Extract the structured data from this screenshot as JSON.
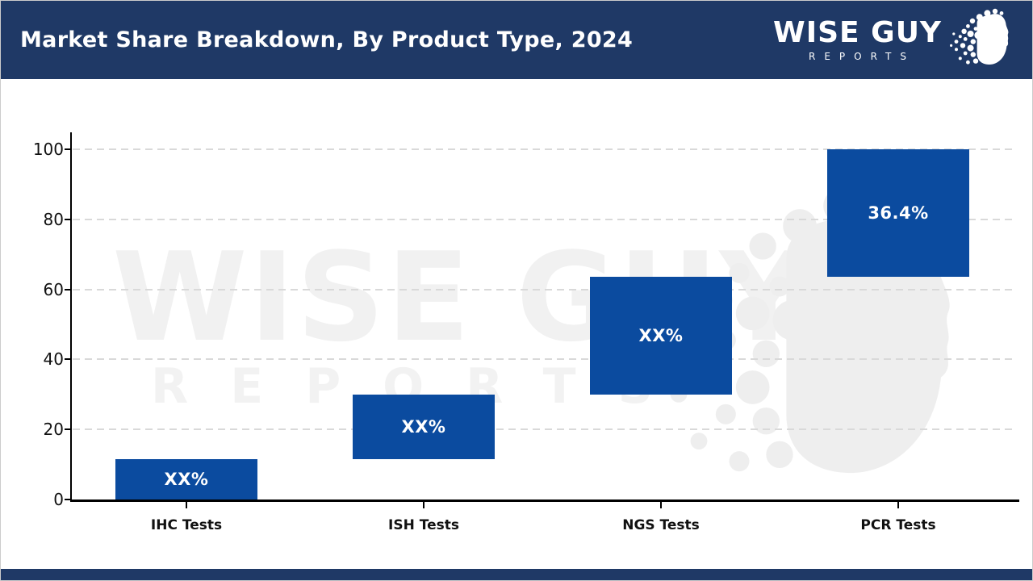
{
  "header": {
    "title": "Market Share Breakdown, By Product Type, 2024",
    "logo": {
      "line1": "WISE GUY",
      "line2": "REPORTS"
    }
  },
  "watermark": {
    "line1": "WISE GUY",
    "line2": "REPORTS"
  },
  "footer": {},
  "chart_data": {
    "type": "bar",
    "subtype": "floating-waterfall",
    "title": "Market Share Breakdown, By Product Type, 2024",
    "categories": [
      "IHC Tests",
      "ISH Tests",
      "NGS Tests",
      "PCR Tests"
    ],
    "bars": [
      {
        "category": "IHC Tests",
        "start": 0,
        "end": 11.5,
        "label": "XX%"
      },
      {
        "category": "ISH Tests",
        "start": 11.5,
        "end": 30,
        "label": "XX%"
      },
      {
        "category": "NGS Tests",
        "start": 30,
        "end": 63.6,
        "label": "XX%"
      },
      {
        "category": "PCR Tests",
        "start": 63.6,
        "end": 100,
        "label": "36.4%",
        "value": 36.4
      }
    ],
    "ylabel": "",
    "xlabel": "",
    "yticks": [
      0,
      20,
      40,
      60,
      80,
      100
    ],
    "ylim": [
      0,
      105
    ],
    "grid": "dashed-horizontal",
    "legend": "none",
    "colors": {
      "bar": "#0b4b9f",
      "bar_label": "#ffffff",
      "gridline": "#d9d9d9",
      "axis": "#000000",
      "header_bg": "#1f3966",
      "watermark": "#f1f1f1"
    }
  }
}
